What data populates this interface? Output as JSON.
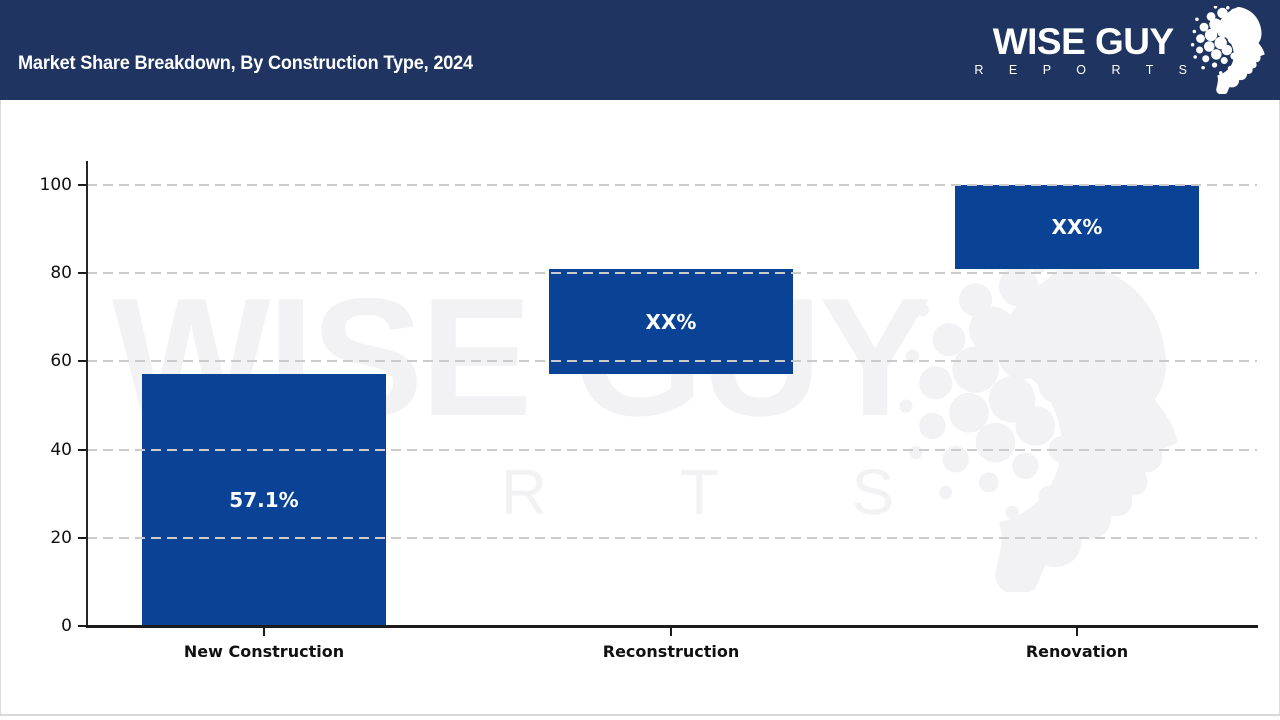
{
  "header": {
    "title": "Market Share Breakdown, By Construction Type, 2024",
    "logo": {
      "name": "WISE GUY",
      "sub": "R E P O R T S"
    }
  },
  "watermark": {
    "name": "WISE GUY",
    "sub": "P O R T S"
  },
  "chart_data": {
    "type": "bar",
    "subtype": "waterfall",
    "title": "Market Share Breakdown, By Construction Type, 2024",
    "categories": [
      "New Construction",
      "Reconstruction",
      "Renovation"
    ],
    "segments": [
      {
        "category": "New Construction",
        "start": 0,
        "end": 57.1,
        "label": "57.1%"
      },
      {
        "category": "Reconstruction",
        "start": 57.1,
        "end": 80.9,
        "label": "XX%"
      },
      {
        "category": "Renovation",
        "start": 80.9,
        "end": 100,
        "label": "XX%"
      }
    ],
    "yticks": [
      0,
      20,
      40,
      60,
      80,
      100
    ],
    "ylim": [
      0,
      105
    ],
    "xlabel": "",
    "ylabel": "",
    "grid": "horizontal-dashed-above-bars",
    "legend": "none"
  },
  "colors": {
    "header_bg": "#1f3461",
    "bar": "#0a4296",
    "bar_label": "#ffffff",
    "axis": "#1c1c1c",
    "grid": "#cbcbcb",
    "watermark": "#f2f2f5",
    "edge": "#d9d9d9"
  }
}
